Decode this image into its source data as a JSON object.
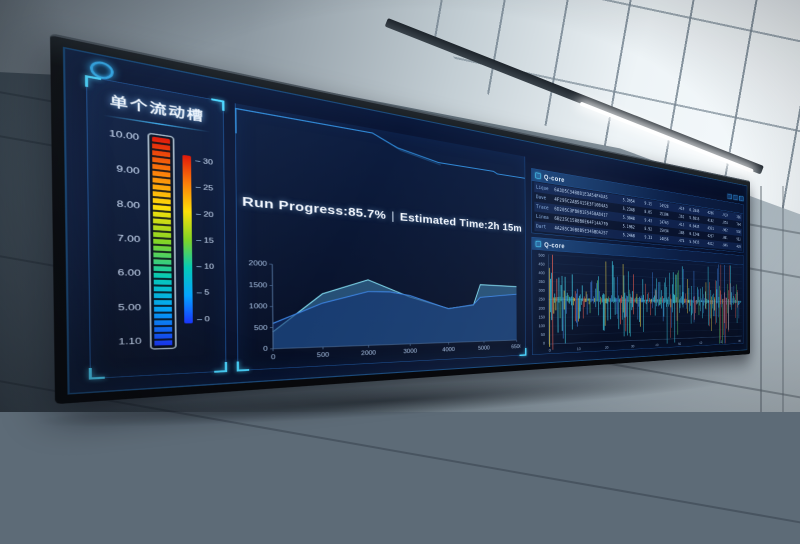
{
  "icons": {
    "logo": "ring-logo-icon",
    "section_header": "chip-icon",
    "window_controls": [
      "panel-icon",
      "panel-icon",
      "panel-icon"
    ]
  },
  "accent": {
    "panel_border": "#1b4f93",
    "cyan": "#49d6ff",
    "text": "#f2f8ff"
  },
  "left_panel": {
    "title": "单个流动槽"
  },
  "middle_panel": {
    "progress_label": "Run Progress:",
    "progress_value": "85.7%",
    "divider": "|",
    "eta_label": "Estimated Time:",
    "eta_value": "2h 15m"
  },
  "right_panel": {
    "table_section": {
      "title": "Q-core"
    },
    "wave_section": {
      "title": "Q-core"
    }
  },
  "chart_data": [
    {
      "id": "single-flow-gauge",
      "type": "bar",
      "title": "单个流动槽",
      "axis_left": {
        "labels": [
          "10.00",
          "9.00",
          "8.00",
          "7.00",
          "6.00",
          "5.00",
          "1.10"
        ],
        "range": [
          1.1,
          10.0
        ]
      },
      "colorbar": {
        "labels": [
          30,
          25,
          20,
          15,
          10,
          5,
          0
        ],
        "range": [
          0,
          30
        ]
      },
      "palette": [
        "#e01000",
        "#ff7a00",
        "#ffdf00",
        "#7fd41e",
        "#00c9b4",
        "#00a2ff",
        "#1733ff"
      ]
    },
    {
      "id": "run-progress-chart",
      "type": "area",
      "title": "",
      "xlabel": "",
      "ylabel": "",
      "x_ticks": [
        0,
        500,
        2000,
        3000,
        4000,
        5000,
        6500
      ],
      "y_ticks": [
        0,
        500,
        1000,
        1500,
        2000
      ],
      "xlim": [
        0,
        6500
      ],
      "ylim": [
        0,
        2000
      ],
      "legend": "none",
      "grid": false,
      "series": [
        {
          "name": "throughput-upper",
          "color": "#7fd8ec",
          "fill": "rgba(62,130,178,0.55)",
          "points": [
            [
              0,
              400
            ],
            [
              500,
              1320
            ],
            [
              2000,
              1700
            ],
            [
              3000,
              1270
            ],
            [
              4000,
              960
            ],
            [
              4700,
              1060
            ],
            [
              4900,
              1660
            ],
            [
              6500,
              1630
            ]
          ]
        },
        {
          "name": "throughput-lower",
          "color": "#3b82e0",
          "fill": "rgba(16,48,110,0.60)",
          "points": [
            [
              0,
              600
            ],
            [
              500,
              1090
            ],
            [
              2000,
              1395
            ],
            [
              2500,
              1400
            ],
            [
              3000,
              1310
            ],
            [
              4000,
              955
            ],
            [
              4700,
              1075
            ],
            [
              4900,
              1290
            ],
            [
              6500,
              1400
            ]
          ]
        }
      ]
    },
    {
      "id": "q-core-table",
      "type": "table",
      "title": "Q-core",
      "rows": [
        {
          "label": "Lique",
          "id": "6A3D5C34B8B1E3A54F4DA5",
          "values": [
            "5.3954",
            "9.15",
            "14928",
            ".419",
            "6.2846",
            "4286",
            ".919",
            "316"
          ]
        },
        {
          "label": "Dave",
          "id": "4F295C2AB5415E3F10B4A3",
          "values": [
            "5.2348",
            "8.05",
            "15106",
            ".352",
            "5.8816",
            "4192",
            ".874",
            "704"
          ]
        },
        {
          "label": "Trace",
          "id": "6D205C3FB0B1E5458AB417",
          "values": [
            "5.3048",
            "9.43",
            "14763",
            ".415",
            "6.0435",
            "4351",
            ".902",
            "538"
          ]
        },
        {
          "label": "Linea",
          "id": "6B225C15B8B0E64F14A770",
          "values": [
            "5.1962",
            "8.92",
            "15034",
            ".388",
            "6.1248",
            "4267",
            ".861",
            "912"
          ]
        },
        {
          "label": "Dart",
          "id": "4A285C30B8B5E345BDA257",
          "values": [
            "5.2468",
            "9.31",
            "14856",
            ".474",
            "5.9435",
            "4312",
            ".846",
            "429"
          ]
        }
      ]
    },
    {
      "id": "q-core-wave",
      "type": "bar",
      "title": "Q-core",
      "y_ticks": [
        500,
        450,
        400,
        350,
        300,
        250,
        200,
        150,
        100,
        50,
        0
      ],
      "x_ticks": [
        0,
        10,
        20,
        30,
        40,
        50,
        60,
        70,
        80
      ],
      "baseline": 250,
      "n_points": 235,
      "seed": 42,
      "colors": [
        "#3fd0e8",
        "#3a7bd5",
        "#e8d24a",
        "#e05a4e",
        "#59c26a"
      ]
    }
  ]
}
